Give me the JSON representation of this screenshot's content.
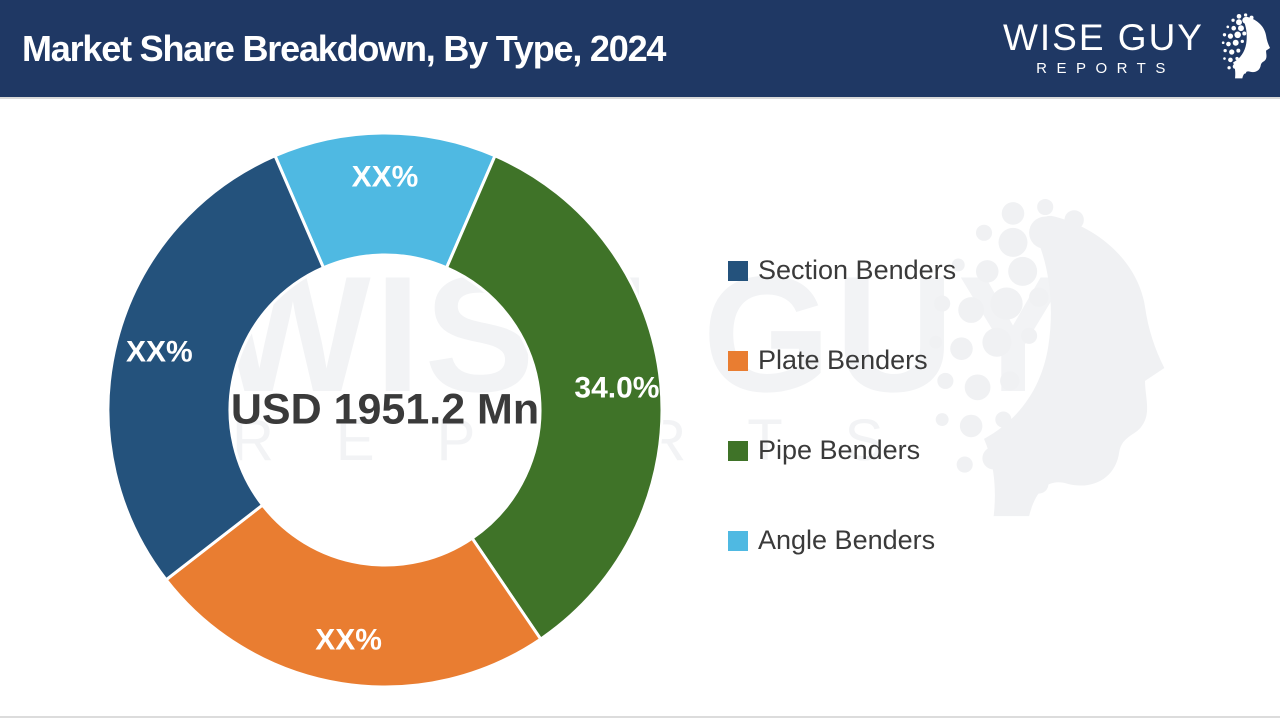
{
  "header": {
    "title": "Market Share Breakdown, By Type, 2024",
    "logo": {
      "name": "WISE GUY",
      "subtitle": "REPORTS"
    }
  },
  "watermark": {
    "line1": "WISE GUY",
    "line2": "REPORTS"
  },
  "chart_data": {
    "type": "donut",
    "title": "Market Share Breakdown, By Type, 2024",
    "center_label": "USD 1951.2 Mn",
    "units": "percent of market share",
    "start_angle_deg": -23.4,
    "direction": "clockwise",
    "legend_position": "right",
    "segments": [
      {
        "label": "Section Benders",
        "value_pct": 29,
        "display_label": "XX%",
        "color": "#24527C"
      },
      {
        "label": "Plate Benders",
        "value_pct": 24,
        "display_label": "XX%",
        "color": "#E97D31"
      },
      {
        "label": "Pipe Benders",
        "value_pct": 34,
        "display_label": "34.0%",
        "color": "#3F7328"
      },
      {
        "label": "Angle Benders",
        "value_pct": 13,
        "display_label": "XX%",
        "color": "#4FB9E2"
      }
    ]
  },
  "colors": {
    "header_bg": "#1F3864",
    "title_text": "#FFFFFF",
    "center_text": "#3A3A3A",
    "legend_text": "#3A3A3A",
    "divider": "#D9D9D9"
  }
}
